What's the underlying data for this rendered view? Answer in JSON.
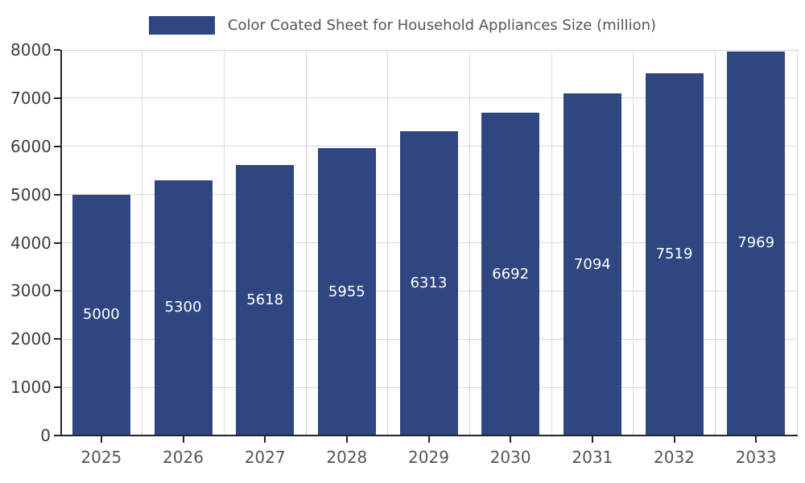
{
  "chart_data": {
    "type": "bar",
    "title": "Color Coated Sheet for Household Appliances Size (million)",
    "legend": {
      "label": "Color Coated Sheet for Household Appliances Size (million)",
      "position": "top"
    },
    "categories": [
      "2025",
      "2026",
      "2027",
      "2028",
      "2029",
      "2030",
      "2031",
      "2032",
      "2033"
    ],
    "values": [
      5000,
      5300,
      5618,
      5955,
      6313,
      6692,
      7094,
      7519,
      7969
    ],
    "xlabel": "",
    "ylabel": "",
    "ylim": [
      0,
      8000
    ],
    "ytick_step": 1000,
    "ytick_labels": [
      "0",
      "1000",
      "2000",
      "3000",
      "4000",
      "5000",
      "6000",
      "7000",
      "8000"
    ],
    "grid": true,
    "bar_color": "#2F4680",
    "axis_color": "#262626",
    "grid_color": "#d9d9d9",
    "value_label_color": "#ffffff",
    "value_labels_inside": true
  }
}
